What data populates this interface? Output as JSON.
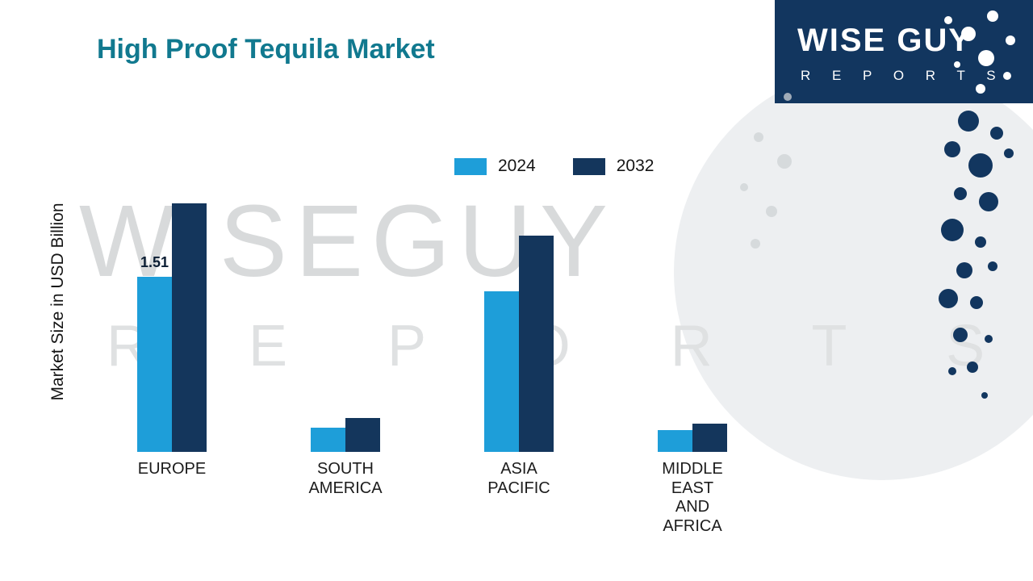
{
  "title": "High Proof Tequila Market",
  "colors": {
    "title": "#11798f",
    "logo_bg": "#12365f",
    "series_2024": "#1e9ed9",
    "series_2032": "#14365c",
    "watermark": "#d8dadb",
    "background_circle": "#edeff1"
  },
  "logo": {
    "line1": "WISE GUY",
    "line2": "R E P O R T S"
  },
  "watermark": {
    "line1": "WISEGUY",
    "line2": "R E P O R T S"
  },
  "chart_data": {
    "type": "bar",
    "title": "High Proof Tequila Market",
    "ylabel": "Market Size in USD Billion",
    "categories": [
      "EUROPE",
      "SOUTH AMERICA",
      "ASIA PACIFIC",
      "MIDDLE EAST AND AFRICA"
    ],
    "category_lines": [
      [
        "EUROPE"
      ],
      [
        "SOUTH",
        "AMERICA"
      ],
      [
        "ASIA",
        "PACIFIC"
      ],
      [
        "MIDDLE",
        "EAST",
        "AND",
        "AFRICA"
      ]
    ],
    "series": [
      {
        "name": "2024",
        "color": "#1e9ed9",
        "values": [
          1.51,
          0.21,
          1.38,
          0.19
        ]
      },
      {
        "name": "2032",
        "color": "#14365c",
        "values": [
          2.14,
          0.29,
          1.86,
          0.24
        ]
      }
    ],
    "data_labels": [
      {
        "series": 0,
        "category": 0,
        "text": "1.51"
      }
    ],
    "ylim": [
      0,
      2.5
    ],
    "grid": false,
    "legend_position": "top"
  }
}
